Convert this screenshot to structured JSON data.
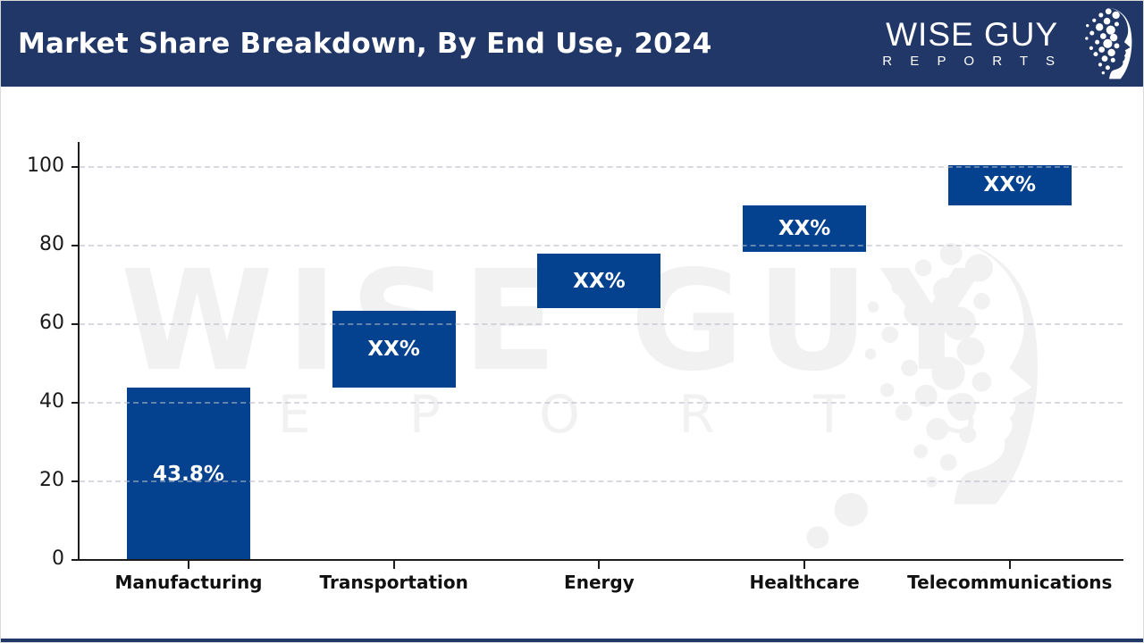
{
  "header": {
    "title": "Market Share Breakdown, By End Use, 2024",
    "logo_line1": "WISE GUY",
    "logo_line2": "R E P O R T S"
  },
  "watermark": {
    "line1": "WISE GUY",
    "line2": "R E P O R T S"
  },
  "colors": {
    "header_bg": "#213767",
    "footer_bg": "#213767",
    "bar": "#04418f",
    "bar_label": "#ffffff",
    "axis": "#1c1c1c",
    "grid": "#dcdcdc",
    "watermark": "#f1f1f1"
  },
  "chart_data": {
    "type": "bar",
    "subtype": "waterfall",
    "title": "Market Share Breakdown, By End Use, 2024",
    "categories": [
      "Manufacturing",
      "Transportation",
      "Energy",
      "Healthcare",
      "Telecommunications"
    ],
    "segments": [
      {
        "category": "Manufacturing",
        "start": 0,
        "end": 43.8,
        "label": "43.8%"
      },
      {
        "category": "Transportation",
        "start": 43.8,
        "end": 63.5,
        "label": "XX%"
      },
      {
        "category": "Energy",
        "start": 64.0,
        "end": 78.0,
        "label": "XX%"
      },
      {
        "category": "Healthcare",
        "start": 78.3,
        "end": 90.2,
        "label": "XX%"
      },
      {
        "category": "Telecommunications",
        "start": 90.3,
        "end": 100.5,
        "label": "XX%"
      }
    ],
    "yticks": [
      0,
      20,
      40,
      60,
      80,
      100
    ],
    "ylim": [
      0,
      105
    ],
    "xlabel": "",
    "ylabel": "",
    "grid": "horizontal-dashed",
    "legend": "none"
  }
}
